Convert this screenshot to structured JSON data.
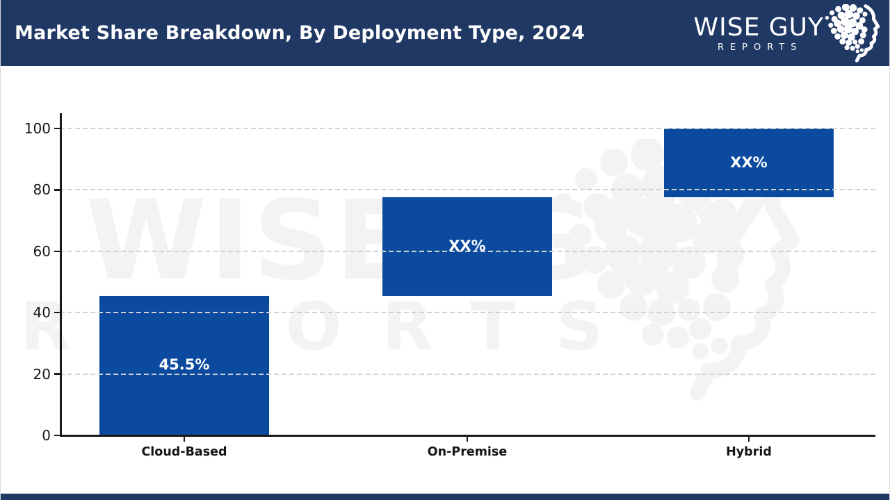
{
  "header": {
    "logo": {
      "line1": "WISE GUY",
      "line2": "REPORTS"
    }
  },
  "watermark": {
    "line1": "WISE GUY",
    "line2": "REPORTS"
  },
  "chart_data": {
    "type": "bar",
    "variant": "waterfall-floating-segments",
    "title": "Market Share Breakdown, By Deployment Type, 2024",
    "categories": [
      "Cloud-Based",
      "On-Premise",
      "Hybrid"
    ],
    "segments": [
      {
        "category": "Cloud-Based",
        "start": 0,
        "end": 45.5,
        "label": "45.5%"
      },
      {
        "category": "On-Premise",
        "start": 45.5,
        "end": 77.5,
        "label": "XX%"
      },
      {
        "category": "Hybrid",
        "start": 77.5,
        "end": 100,
        "label": "XX%"
      }
    ],
    "xlabel": "",
    "ylabel": "",
    "ylim": [
      0,
      100
    ],
    "yticks": [
      0,
      20,
      40,
      60,
      80,
      100
    ],
    "grid": "horizontal-dashed-over-bars",
    "legend": "none",
    "colors": {
      "bar": "#0b4a9e",
      "bar_label": "#ffffff",
      "header_bg": "#203864",
      "footer_bg": "#203864",
      "gridline": "#d2d2d2",
      "axis": "#1a1a1a",
      "watermark": "#f3f3f3",
      "title_text": "#ffffff"
    }
  }
}
